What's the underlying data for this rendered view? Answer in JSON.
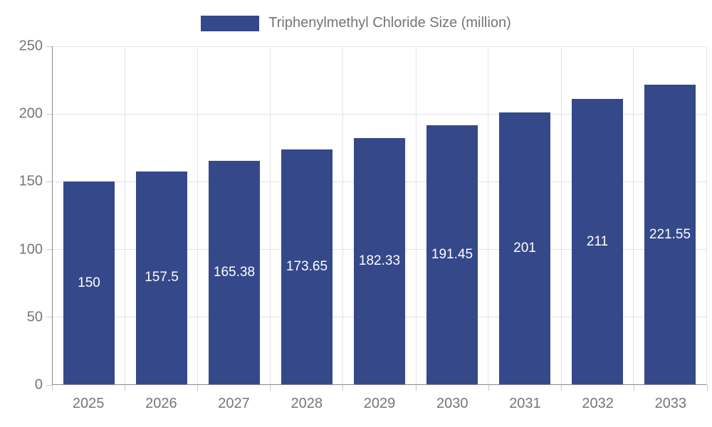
{
  "legend": {
    "items": [
      {
        "label": "Triphenylmethyl Chloride Size (million)",
        "color": "#35488a"
      }
    ]
  },
  "chart_data": {
    "type": "bar",
    "title": "",
    "xlabel": "",
    "ylabel": "",
    "categories": [
      "2025",
      "2026",
      "2027",
      "2028",
      "2029",
      "2030",
      "2031",
      "2032",
      "2033"
    ],
    "series": [
      {
        "name": "Triphenylmethyl Chloride Size (million)",
        "values": [
          150,
          157.5,
          165.38,
          173.65,
          182.33,
          191.45,
          201,
          211,
          221.55
        ],
        "color": "#35488a"
      }
    ],
    "value_labels": [
      "150",
      "157.5",
      "165.38",
      "173.65",
      "182.33",
      "191.45",
      "201",
      "211",
      "221.55"
    ],
    "value_label_position": "inside-center",
    "value_label_color": "#ffffff",
    "ylim": [
      0,
      250
    ],
    "yticks": [
      0,
      50,
      100,
      150,
      200,
      250
    ],
    "grid": true,
    "legend_position": "top-center"
  },
  "styles": {
    "axis_line_color": "#8a8a8a",
    "grid_color": "#e3e3e3",
    "tick_mark_color": "#c9c9c9",
    "tick_text_color": "#757575",
    "background": "#ffffff"
  }
}
